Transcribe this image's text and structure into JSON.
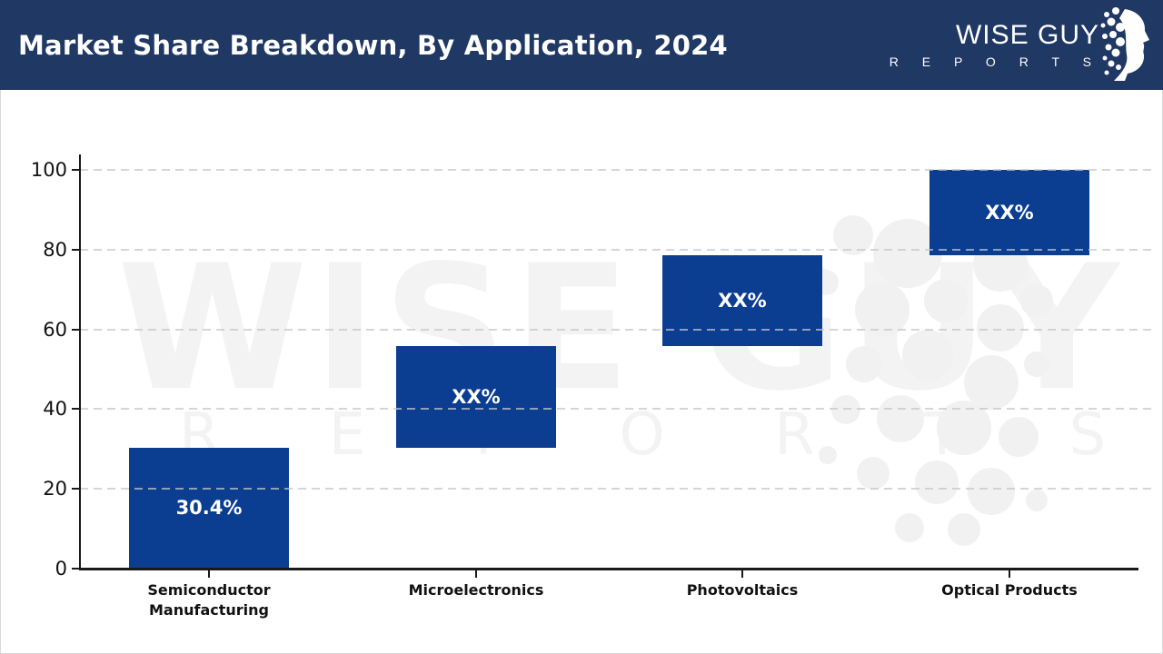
{
  "header": {
    "title": "Market Share Breakdown, By Application, 2024",
    "background_color": "#1f3864",
    "logo": {
      "line1": "WISE GUY",
      "line2": "R E P O R T S"
    }
  },
  "watermark": {
    "line1": "WISE GUY",
    "line2": "R E P O R T S"
  },
  "chart_data": {
    "type": "bar",
    "subtype": "waterfall",
    "title": "Market Share Breakdown, By Application, 2024",
    "categories": [
      "Semiconductor Manufacturing",
      "Microelectronics",
      "Photovoltaics",
      "Optical Products"
    ],
    "series": [
      {
        "name": "Market share (%)",
        "segments": [
          {
            "category": "Semiconductor Manufacturing",
            "start": 0,
            "end": 30.4,
            "label": "30.4%"
          },
          {
            "category": "Microelectronics",
            "start": 30.4,
            "end": 55.7,
            "label": "XX%"
          },
          {
            "category": "Photovoltaics",
            "start": 55.7,
            "end": 78.6,
            "label": "XX%"
          },
          {
            "category": "Optical Products",
            "start": 78.6,
            "end": 100,
            "label": "XX%"
          }
        ]
      }
    ],
    "xlabel": "",
    "ylabel": "",
    "ylim": [
      0,
      104
    ],
    "yticks": [
      0,
      20,
      40,
      60,
      80,
      100
    ],
    "grid": "horizontal-dashed",
    "legend": "none",
    "colors": {
      "bar": "#0b3d91",
      "bar_label": "#ffffff",
      "axis": "#1a1a1a",
      "tick_label": "#111111",
      "gridline": "#d9d9d9",
      "header_bg": "#1f3864",
      "watermark": "#f3f3f3"
    }
  }
}
